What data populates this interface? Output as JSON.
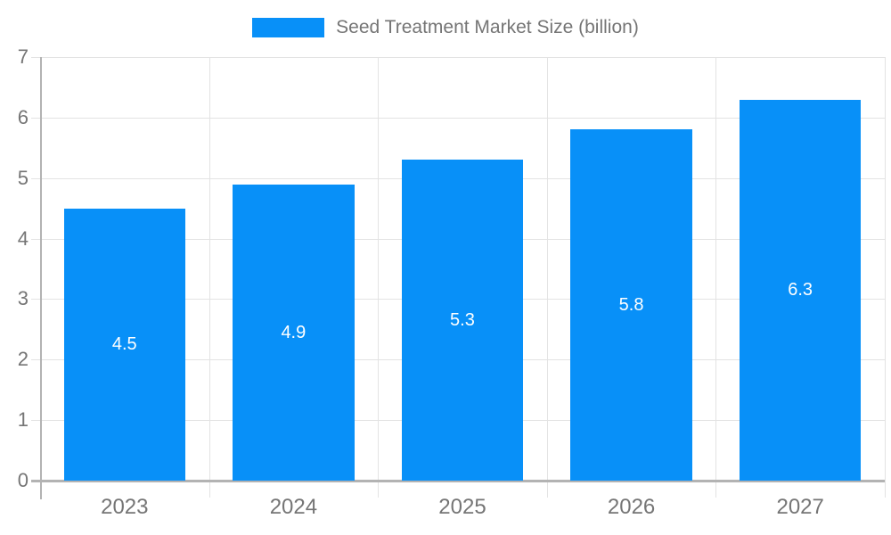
{
  "legend": {
    "label": "Seed Treatment Market Size (billion)"
  },
  "colors": {
    "bar": "#0890f8",
    "grid": "#e3e3e3",
    "axis": "#b3b3b3",
    "tick_text": "#757575",
    "bar_label_text": "#ffffff",
    "background": "#ffffff"
  },
  "chart_data": {
    "type": "bar",
    "series_name": "Seed Treatment Market Size (billion)",
    "categories": [
      "2023",
      "2024",
      "2025",
      "2026",
      "2027"
    ],
    "values": [
      4.5,
      4.9,
      5.3,
      5.8,
      6.3
    ],
    "bar_labels": [
      "4.5",
      "4.9",
      "5.3",
      "5.8",
      "6.3"
    ],
    "title": "",
    "xlabel": "",
    "ylabel": "",
    "ylim": [
      0,
      7
    ],
    "yticks": [
      0,
      1,
      2,
      3,
      4,
      5,
      6,
      7
    ],
    "grid": "on",
    "legend_position": "top-center",
    "bar_label_position": "inside-center"
  }
}
